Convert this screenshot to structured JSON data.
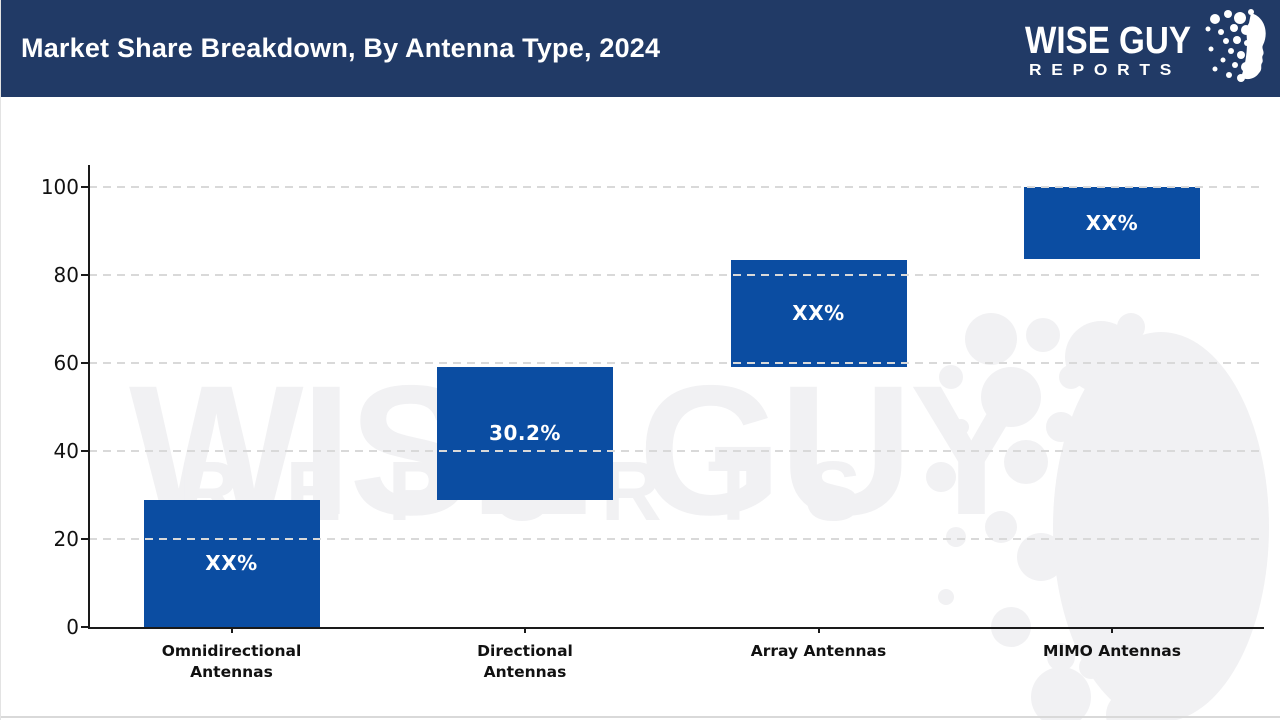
{
  "header": {
    "title": "Market Share Breakdown, By Antenna Type, 2024",
    "bg_color": "#213A66",
    "logo": {
      "name": "WISE GUY",
      "tagline": "REPORTS"
    }
  },
  "watermark": {
    "line1": "WISE GUY",
    "line2": "REPORTS"
  },
  "chart_data": {
    "type": "bar",
    "variant": "waterfall",
    "title": "Market Share Breakdown, By Antenna Type, 2024",
    "categories": [
      "Omnidirectional Antennas",
      "Directional Antennas",
      "Array Antennas",
      "MIMO Antennas"
    ],
    "series": [
      {
        "name": "Market share (%)",
        "segments": [
          {
            "category": "Omnidirectional Antennas",
            "from": 0,
            "to": 28.9,
            "label": "XX%"
          },
          {
            "category": "Directional Antennas",
            "from": 28.9,
            "to": 59.1,
            "label": "30.2%"
          },
          {
            "category": "Array Antennas",
            "from": 59.2,
            "to": 83.5,
            "label": "XX%"
          },
          {
            "category": "MIMO Antennas",
            "from": 83.6,
            "to": 100,
            "label": "XX%"
          }
        ]
      }
    ],
    "xlabel": "",
    "ylabel": "",
    "ylim": [
      0,
      105
    ],
    "yticks": [
      0,
      20,
      40,
      60,
      80,
      100
    ],
    "grid": "horizontal dashed, drawn over bars",
    "legend": "none",
    "bar_color": "#0B4DA2",
    "bar_label_color": "#FFFFFF",
    "axis_color": "#1A1A1A",
    "grid_color": "#D9D9D9",
    "watermark_color": "#F1F1F3"
  }
}
